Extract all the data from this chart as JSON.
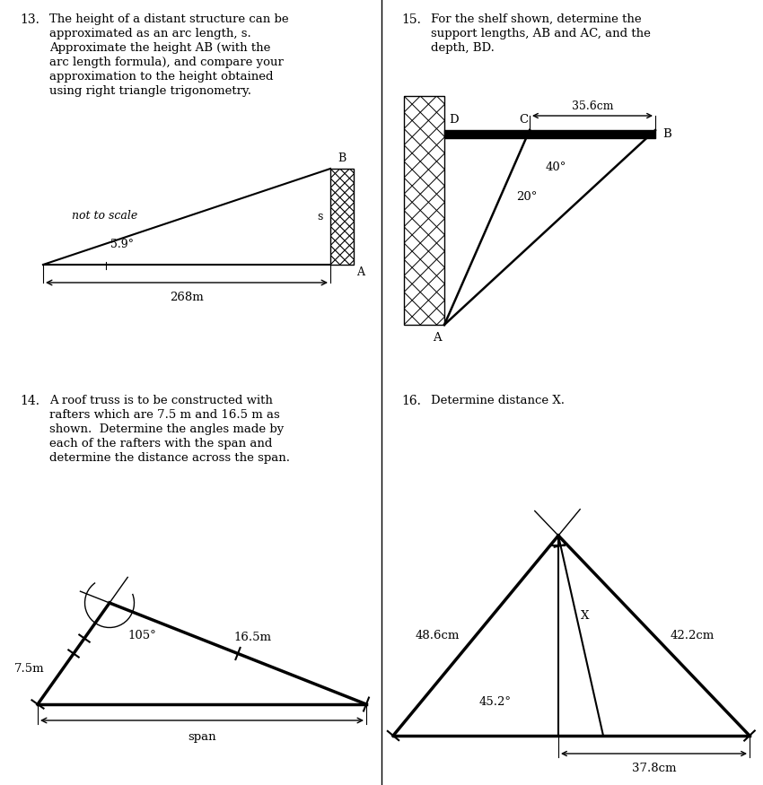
{
  "bg_color": "#ffffff",
  "problem13": {
    "number": "13.",
    "text_lines": [
      "The height of a distant structure can be",
      "approximated as an arc length, s.",
      "Approximate the height AB (with the",
      "arc length formula), and compare your",
      "approximation to the height obtained",
      "using right triangle trigonometry."
    ],
    "label_not_to_scale": "not to scale",
    "label_angle": "5.9°",
    "label_dist": "268m",
    "label_s": "s",
    "label_A": "A",
    "label_B": "B"
  },
  "problem14": {
    "number": "14.",
    "text_lines": [
      "A roof truss is to be constructed with",
      "rafters which are 7.5 m and 16.5 m as",
      "shown.  Determine the angles made by",
      "each of the rafters with the span and",
      "determine the distance across the span."
    ],
    "label_75": "7.5m",
    "label_165": "16.5m",
    "label_angle": "105°",
    "label_span": "span"
  },
  "problem15": {
    "number": "15.",
    "text_lines": [
      "For the shelf shown, determine the",
      "support lengths, AB and AC, and the",
      "depth, BD."
    ],
    "label_356": "35.6cm",
    "label_40": "40°",
    "label_20": "20°",
    "label_A": "A",
    "label_B": "B",
    "label_C": "C",
    "label_D": "D"
  },
  "problem16": {
    "number": "16.",
    "text_lines": [
      "Determine distance X."
    ],
    "label_486": "48.6cm",
    "label_422": "42.2cm",
    "label_452": "45.2°",
    "label_X": "X",
    "label_378": "37.8cm"
  }
}
